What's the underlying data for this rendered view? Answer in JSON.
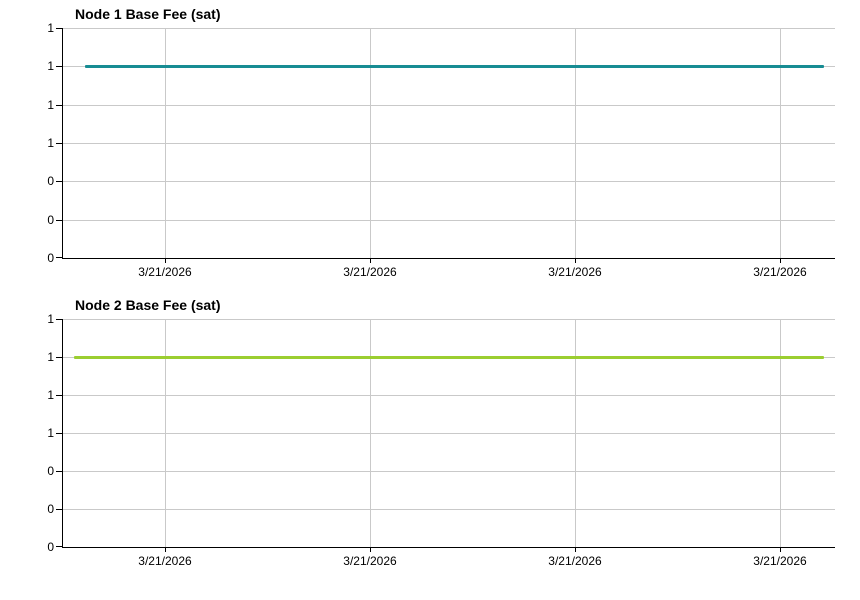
{
  "style": {
    "background": "#FFFFFF",
    "grid_color": "#C9C9C9",
    "axis_color": "#000000",
    "text_color": "#000000"
  },
  "chart_data": [
    {
      "type": "line",
      "title": "Node 1 Base Fee (sat)",
      "series": [
        {
          "name": "Node 1 Base Fee",
          "color": "#178C93",
          "values": [
            1,
            1,
            1,
            1,
            1
          ],
          "note": "constant value of 1 sat across the entire visible time range"
        }
      ],
      "x_tick_labels": [
        "3/21/2026",
        "3/21/2026",
        "3/21/2026",
        "3/21/2026"
      ],
      "y_tick_labels": [
        "1",
        "1",
        "1",
        "1",
        "0",
        "0",
        "0"
      ],
      "ylim": [
        0,
        1.2
      ],
      "y_tick_interval": 0.2,
      "y_label_format": "rounded to integer",
      "xlabel": "",
      "ylabel": "",
      "grid": "on",
      "legend_position": "none"
    },
    {
      "type": "line",
      "title": "Node 2 Base Fee (sat)",
      "series": [
        {
          "name": "Node 2 Base Fee",
          "color": "#9BCE31",
          "values": [
            1,
            1,
            1,
            1,
            1
          ],
          "note": "constant value of 1 sat across the entire visible time range"
        }
      ],
      "x_tick_labels": [
        "3/21/2026",
        "3/21/2026",
        "3/21/2026",
        "3/21/2026"
      ],
      "y_tick_labels": [
        "1",
        "1",
        "1",
        "1",
        "0",
        "0",
        "0"
      ],
      "ylim": [
        0,
        1.2
      ],
      "y_tick_interval": 0.2,
      "y_label_format": "rounded to integer",
      "xlabel": "",
      "ylabel": "",
      "grid": "on",
      "legend_position": "none"
    }
  ]
}
